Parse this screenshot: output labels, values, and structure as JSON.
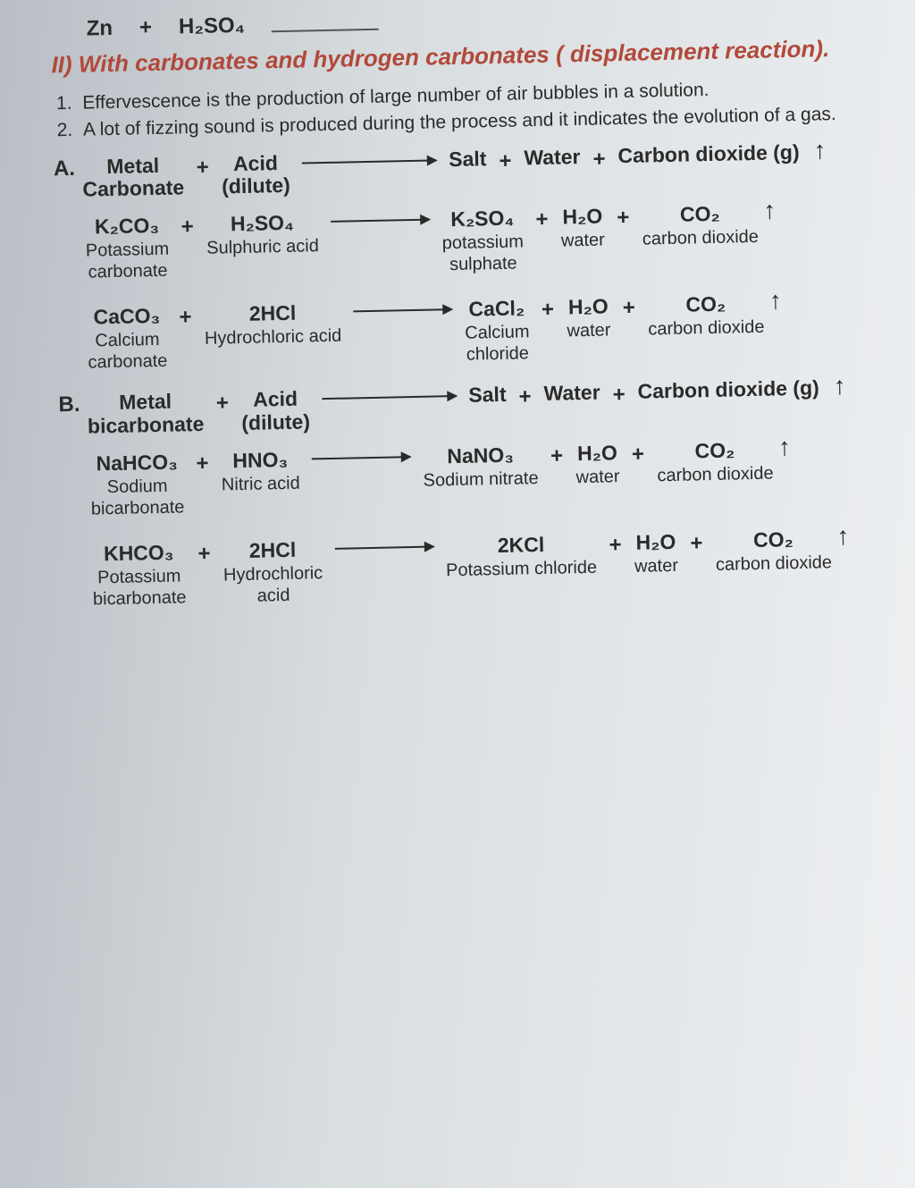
{
  "colors": {
    "text": "#2a2a2a",
    "title": "#b1493a",
    "bg_grad_from": "#b8bec4",
    "bg_grad_to": "#eef0f2"
  },
  "top": {
    "zn": "Zn",
    "plus": "+",
    "h2so4": "H₂SO₄"
  },
  "title": "II) With carbonates and hydrogen carbonates ( displacement reaction).",
  "notes": [
    "Effervescence is the production of large number of air bubbles in a solution.",
    "A lot of fizzing sound is produced during the process and it indicates the evolution of a gas."
  ],
  "A": {
    "label": "A.",
    "general": {
      "lhs1_l1": "Metal",
      "lhs1_l2": "Carbonate",
      "lhs2_l1": "Acid",
      "lhs2_l2": "(dilute)",
      "rhs1": "Salt",
      "rhs2": "Water",
      "rhs3": "Carbon dioxide (g)"
    },
    "ex1": {
      "lhs1_f": "K₂CO₃",
      "lhs1_n1": "Potassium",
      "lhs1_n2": "carbonate",
      "lhs2_f": "H₂SO₄",
      "lhs2_n": "Sulphuric acid",
      "rhs1_f": "K₂SO₄",
      "rhs1_n1": "potassium",
      "rhs1_n2": "sulphate",
      "rhs2_f": "H₂O",
      "rhs2_n": "water",
      "rhs3_f": "CO₂",
      "rhs3_n": "carbon dioxide"
    },
    "ex2": {
      "lhs1_f": "CaCO₃",
      "lhs1_n1": "Calcium",
      "lhs1_n2": "carbonate",
      "lhs2_f": "2HCl",
      "lhs2_n": "Hydrochloric acid",
      "rhs1_f": "CaCl₂",
      "rhs1_n1": "Calcium",
      "rhs1_n2": "chloride",
      "rhs2_f": "H₂O",
      "rhs2_n": "water",
      "rhs3_f": "CO₂",
      "rhs3_n": "carbon dioxide"
    }
  },
  "B": {
    "label": "B.",
    "general": {
      "lhs1_l1": "Metal",
      "lhs1_l2": "bicarbonate",
      "lhs2_l1": "Acid",
      "lhs2_l2": "(dilute)",
      "rhs1": "Salt",
      "rhs2": "Water",
      "rhs3": "Carbon dioxide (g)"
    },
    "ex1": {
      "lhs1_f": "NaHCO₃",
      "lhs1_n1": "Sodium",
      "lhs1_n2": "bicarbonate",
      "lhs2_f": "HNO₃",
      "lhs2_n": "Nitric acid",
      "rhs1_f": "NaNO₃",
      "rhs1_n": "Sodium nitrate",
      "rhs2_f": "H₂O",
      "rhs2_n": "water",
      "rhs3_f": "CO₂",
      "rhs3_n": "carbon dioxide"
    },
    "ex2": {
      "lhs1_f": "KHCO₃",
      "lhs1_n1": "Potassium",
      "lhs1_n2": "bicarbonate",
      "lhs2_f": "2HCl",
      "lhs2_n1": "Hydrochloric",
      "lhs2_n2": "acid",
      "rhs1_f": "2KCl",
      "rhs1_n": "Potassium chloride",
      "rhs2_f": "H₂O",
      "rhs2_n": "water",
      "rhs3_f": "CO₂",
      "rhs3_n": "carbon dioxide"
    }
  },
  "sym": {
    "plus": "+",
    "up": "↑"
  }
}
